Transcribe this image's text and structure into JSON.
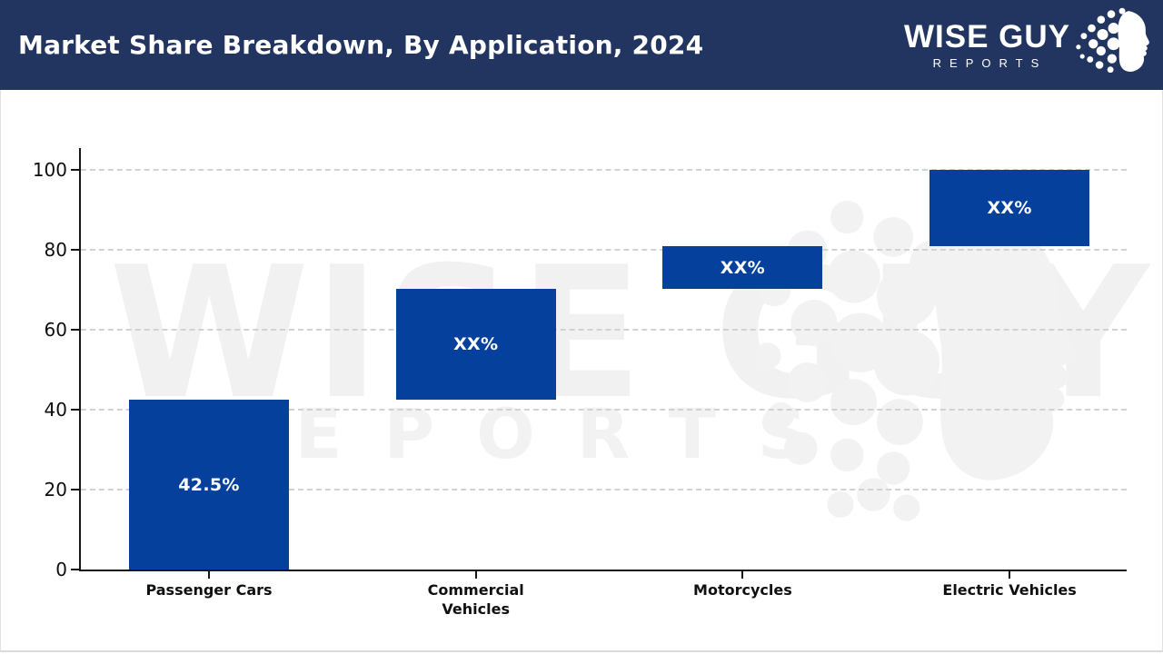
{
  "header": {
    "title": "Market Share Breakdown, By Application, 2024",
    "bg_color": "#223560",
    "logo": {
      "line1": "WISE GUY",
      "line2": "REPORTS"
    }
  },
  "watermark": {
    "line1": "WISE GUY",
    "line2": "REPORTS"
  },
  "chart_data": {
    "type": "bar",
    "subtype": "waterfall",
    "title": "Market Share Breakdown, By Application, 2024",
    "categories": [
      "Passenger Cars",
      "Commercial Vehicles",
      "Motorcycles",
      "Electric Vehicles"
    ],
    "tick_labels": [
      "Passenger Cars",
      "Commercial\nVehicles",
      "Motorcycles",
      "Electric Vehicles"
    ],
    "segments": [
      {
        "category": "Passenger Cars",
        "start": 0,
        "end": 42.5,
        "label": "42.5%"
      },
      {
        "category": "Commercial Vehicles",
        "start": 42.5,
        "end": 70.2,
        "label": "XX%"
      },
      {
        "category": "Motorcycles",
        "start": 70.2,
        "end": 80.8,
        "label": "XX%"
      },
      {
        "category": "Electric Vehicles",
        "start": 80.8,
        "end": 100,
        "label": "XX%"
      }
    ],
    "yticks": [
      0,
      20,
      40,
      60,
      80,
      100
    ],
    "ylim": [
      0,
      105.5
    ],
    "xlabel": "",
    "ylabel": "",
    "legend": "none",
    "grid": "dashed-horizontal",
    "bar_color": "#05419c",
    "bar_label_color": "#ffffff",
    "grid_color": "#d2d2d2",
    "axis_color": "#161616"
  }
}
